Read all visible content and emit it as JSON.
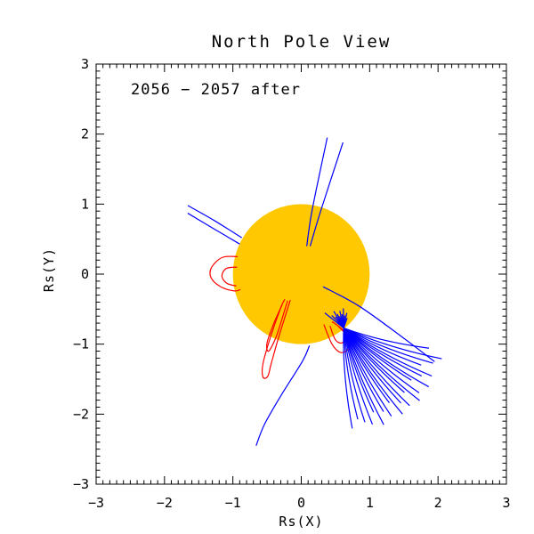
{
  "window": {
    "background": "#FFFFFF"
  },
  "chart_data": {
    "type": "line",
    "title": "North Pole View",
    "annotation": "2056 − 2057 after",
    "xlabel": "Rs(X)",
    "ylabel": "Rs(Y)",
    "xlim": [
      -3,
      3
    ],
    "ylim": [
      -3,
      3
    ],
    "grid": false,
    "legend": "none",
    "xticks": [
      -3,
      -2,
      -1,
      0,
      1,
      2,
      3
    ],
    "yticks": [
      -3,
      -2,
      -1,
      0,
      1,
      2,
      3
    ],
    "xtick_labels": [
      "−3",
      "−2",
      "−1",
      "0",
      "1",
      "2",
      "3"
    ],
    "ytick_labels": [
      "−3",
      "−2",
      "−1",
      "0",
      "1",
      "2",
      "3"
    ],
    "minor_tick_step": 0.1,
    "axis_color": "#000000",
    "sun": {
      "cx": 0,
      "cy": 0,
      "r": 1,
      "color": "#FFC800"
    },
    "closed_field": {
      "name": "closed-field-lines",
      "color": "#FF0000",
      "loops": [
        [
          [
            -0.93,
            0.25
          ],
          [
            -1.15,
            0.24
          ],
          [
            -1.31,
            0.1
          ],
          [
            -1.32,
            -0.05
          ],
          [
            -1.18,
            -0.18
          ],
          [
            -0.98,
            -0.24
          ],
          [
            -0.89,
            -0.22
          ]
        ],
        [
          [
            -0.94,
            0.1
          ],
          [
            -1.1,
            0.08
          ],
          [
            -1.16,
            -0.03
          ],
          [
            -1.09,
            -0.13
          ],
          [
            -0.95,
            -0.17
          ]
        ],
        [
          [
            -0.16,
            -0.37
          ],
          [
            -0.33,
            -0.9
          ],
          [
            -0.44,
            -1.28
          ],
          [
            -0.49,
            -1.46
          ],
          [
            -0.56,
            -1.47
          ],
          [
            -0.56,
            -1.28
          ],
          [
            -0.45,
            -0.9
          ],
          [
            -0.3,
            -0.48
          ],
          [
            -0.24,
            -0.36
          ]
        ],
        [
          [
            -0.2,
            -0.38
          ],
          [
            -0.35,
            -0.85
          ],
          [
            -0.44,
            -1.05
          ],
          [
            -0.49,
            -1.1
          ],
          [
            -0.5,
            -0.98
          ],
          [
            -0.4,
            -0.7
          ],
          [
            -0.28,
            -0.44
          ]
        ],
        [
          [
            0.33,
            -0.72
          ],
          [
            0.45,
            -1.0
          ],
          [
            0.58,
            -1.12
          ],
          [
            0.7,
            -1.05
          ],
          [
            0.68,
            -0.88
          ],
          [
            0.55,
            -0.75
          ],
          [
            0.45,
            -0.68
          ]
        ],
        [
          [
            0.42,
            -0.74
          ],
          [
            0.5,
            -0.94
          ],
          [
            0.6,
            -0.98
          ],
          [
            0.64,
            -0.86
          ],
          [
            0.54,
            -0.74
          ]
        ]
      ]
    },
    "open_field": {
      "name": "open-field-lines",
      "color": "#0000FF",
      "lines": [
        [
          [
            0.08,
            0.4
          ],
          [
            0.16,
            0.92
          ],
          [
            0.38,
            1.95
          ]
        ],
        [
          [
            0.13,
            0.4
          ],
          [
            0.29,
            0.92
          ],
          [
            0.61,
            1.88
          ]
        ],
        [
          [
            -0.87,
            0.52
          ],
          [
            -1.28,
            0.77
          ],
          [
            -1.66,
            0.98
          ]
        ],
        [
          [
            -0.9,
            0.43
          ],
          [
            -1.3,
            0.66
          ],
          [
            -1.66,
            0.87
          ]
        ],
        [
          [
            0.32,
            -0.18
          ],
          [
            0.85,
            -0.46
          ],
          [
            1.45,
            -0.88
          ],
          [
            1.95,
            -1.25
          ]
        ],
        [
          [
            0.12,
            -1.02
          ],
          [
            0.02,
            -1.24
          ],
          [
            -0.3,
            -1.74
          ],
          [
            -0.54,
            -2.15
          ],
          [
            -0.66,
            -2.45
          ]
        ]
      ]
    },
    "fan": {
      "name": "open-field-fan",
      "color": "#0000FF",
      "apex": [
        0.62,
        -0.77
      ],
      "angles_deg": [
        -13,
        -17,
        -21,
        -25,
        -28,
        -31,
        -34,
        -37,
        -40,
        -43,
        -46,
        -49,
        -52,
        -55,
        -58,
        -61,
        -64,
        -67,
        -70,
        -73,
        -77,
        -81,
        -85
      ],
      "lengths": [
        1.28,
        1.5,
        1.4,
        1.25,
        1.46,
        1.33,
        1.5,
        1.24,
        1.44,
        1.52,
        1.28,
        1.47,
        1.36,
        1.5,
        1.26,
        1.44,
        1.33,
        1.5,
        1.28,
        1.44,
        1.38,
        1.32,
        1.44
      ],
      "back": [
        0.35,
        0.12,
        0.25,
        0.08,
        0.2,
        0.1,
        0.28,
        0.08,
        0.22,
        0.12,
        0.18,
        0.08,
        0.25,
        0.1,
        0.2,
        0.08,
        0.28,
        0.1,
        0.18,
        0.08,
        0.22,
        0.1,
        0.15
      ]
    }
  }
}
